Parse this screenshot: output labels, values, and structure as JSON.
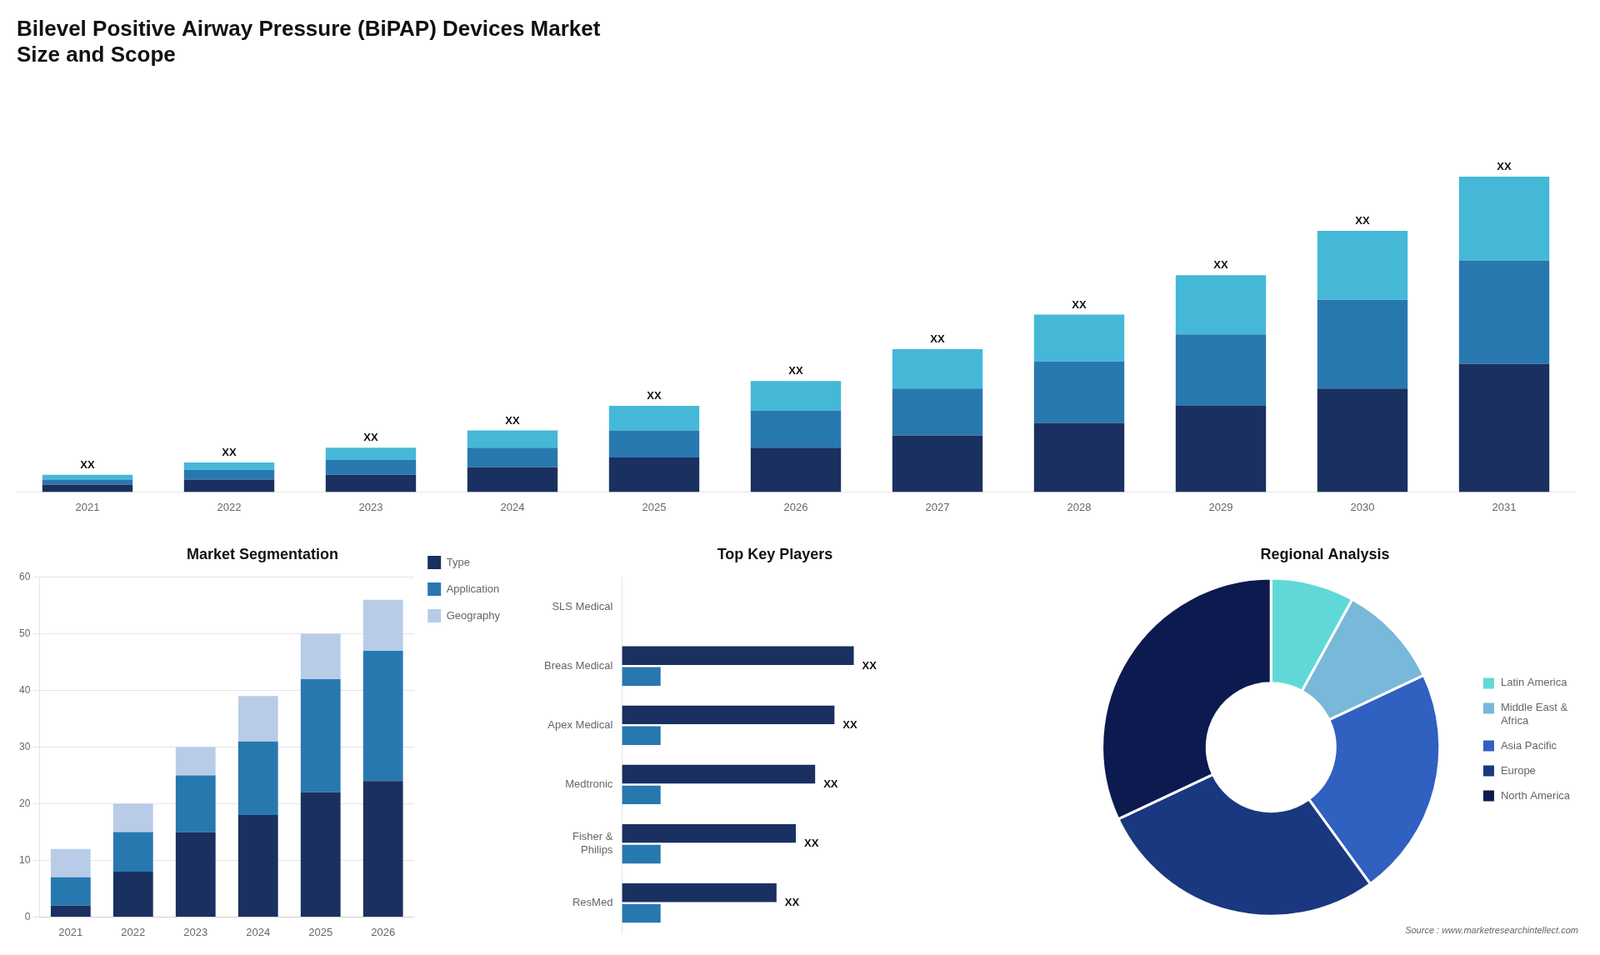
{
  "chart_data": [
    {
      "type": "bar",
      "title": "Bilevel Positive Airway Pressure (BiPAP) Devices Market\nSize and Scope",
      "categories": [
        "2021",
        "2022",
        "2023",
        "2024",
        "2025",
        "2026",
        "2027",
        "2028",
        "2029",
        "2030",
        "2031"
      ],
      "series": [
        {
          "color": "#1a3060",
          "values": [
            3,
            5,
            7,
            10,
            14,
            18,
            23,
            28,
            35,
            42,
            52
          ]
        },
        {
          "color": "#2878b0",
          "values": [
            2,
            4,
            6,
            8,
            11,
            15,
            19,
            25,
            29,
            36,
            42
          ]
        },
        {
          "color": "#45b8d8",
          "values": [
            2,
            3,
            5,
            7,
            10,
            12,
            16,
            19,
            24,
            28,
            34
          ]
        }
      ],
      "stacked": true,
      "ylim": [
        0,
        166.4
      ],
      "tick_labels": "x",
      "grid": false,
      "annotations": [
        "XX",
        "XX",
        "XX",
        "XX",
        "XX",
        "XX",
        "XX",
        "XX",
        "XX",
        "XX",
        "XX"
      ]
    },
    {
      "type": "bar",
      "title": "Market Segmentation",
      "categories": [
        "2021",
        "2022",
        "2023",
        "2024",
        "2025",
        "2026"
      ],
      "series": [
        {
          "name": "Type",
          "color": "#1a3060",
          "values": [
            2,
            8,
            15,
            18,
            22,
            24
          ]
        },
        {
          "name": "Application",
          "color": "#2878b0",
          "values": [
            5,
            7,
            10,
            13,
            20,
            23
          ]
        },
        {
          "name": "Geography",
          "color": "#b8cce8",
          "values": [
            5,
            5,
            5,
            8,
            8,
            9
          ]
        }
      ],
      "stacked": true,
      "ylim": [
        0,
        60
      ],
      "yticks": [
        0,
        10,
        20,
        30,
        40,
        50,
        60
      ],
      "grid": true,
      "legend": "right"
    },
    {
      "type": "bar",
      "title": "Top Key Players",
      "orientation": "horizontal",
      "categories": [
        "SLS Medical",
        "Breas Medical",
        "Apex Medical",
        "Medtronic",
        "Fisher &\nPhilips",
        "ResMed"
      ],
      "series": [
        {
          "color": "#1a3060",
          "values": [
            0,
            60,
            55,
            50,
            45,
            40
          ]
        },
        {
          "color": "#2878b0",
          "values": [
            0,
            10,
            10,
            10,
            10,
            10
          ]
        }
      ],
      "xlim": [
        0,
        100
      ],
      "tick_labels": "y",
      "grid": false,
      "annotations": [
        null,
        "XX",
        "XX",
        "XX",
        "XX",
        "XX"
      ]
    },
    {
      "type": "doughnut",
      "title": "Regional Analysis",
      "subtitle": "Source : www.marketresearchintellect.com",
      "categories": [
        "Latin America",
        "Middle East &\nAfrica",
        "Asia Pacific",
        "Europe",
        "North America"
      ],
      "values": [
        8,
        10,
        22,
        28,
        32
      ],
      "colors": [
        "#60d8d8",
        "#78b8d8",
        "#3060c0",
        "#1a3880",
        "#0d1a50"
      ],
      "legend": "right"
    }
  ]
}
